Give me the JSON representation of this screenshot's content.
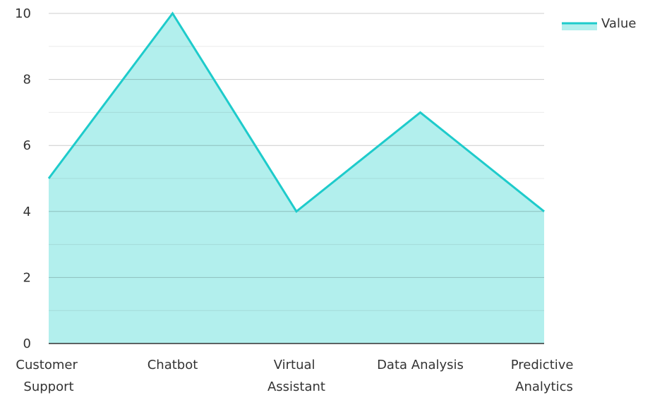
{
  "chart_data": {
    "type": "area",
    "categories": [
      "Customer Support",
      "Chatbot",
      "Virtual Assistant",
      "Data Analysis",
      "Predictive Analytics"
    ],
    "series": [
      {
        "name": "Value",
        "color": "#1ecbcb",
        "fill": "#b2efed",
        "values": [
          5,
          10,
          4,
          7,
          4
        ]
      }
    ],
    "ylim": [
      0,
      10
    ],
    "yticks": [
      0,
      2,
      4,
      6,
      8,
      10
    ],
    "yminorticks": [
      1,
      3,
      5,
      7,
      9
    ],
    "grid": true,
    "legend": "top-right"
  }
}
